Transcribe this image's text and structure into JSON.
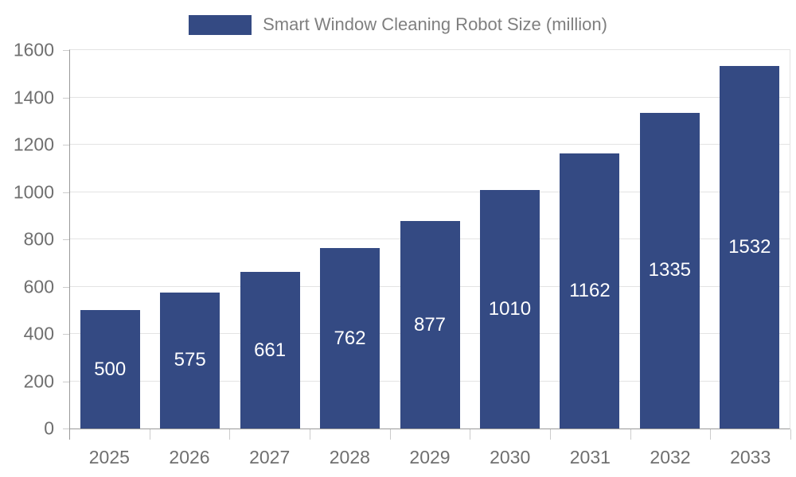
{
  "chart_data": {
    "type": "bar",
    "title": "Smart Window Cleaning Robot Size (million)",
    "legend": [
      "Smart Window Cleaning Robot Size (million)"
    ],
    "legend_position": "top-center",
    "categories": [
      "2025",
      "2026",
      "2027",
      "2028",
      "2029",
      "2030",
      "2031",
      "2032",
      "2033"
    ],
    "values": [
      500,
      575,
      661,
      762,
      877,
      1010,
      1162,
      1335,
      1532
    ],
    "xlabel": "",
    "ylabel": "",
    "ylim": [
      0,
      1600
    ],
    "ytick_step": 200,
    "yticks": [
      0,
      200,
      400,
      600,
      800,
      1000,
      1200,
      1400,
      1600
    ],
    "grid": "horizontal",
    "value_label_style": "white, centered inside bar",
    "colors": {
      "bar": "#344a83",
      "bar_label": "#ffffff",
      "axis_line": "#999999",
      "tick_line": "#cccccc",
      "grid_line": "#e3e3e3",
      "axis_text": "#6f6f6f",
      "legend_text": "#7f7f7f",
      "background": "#ffffff"
    }
  }
}
